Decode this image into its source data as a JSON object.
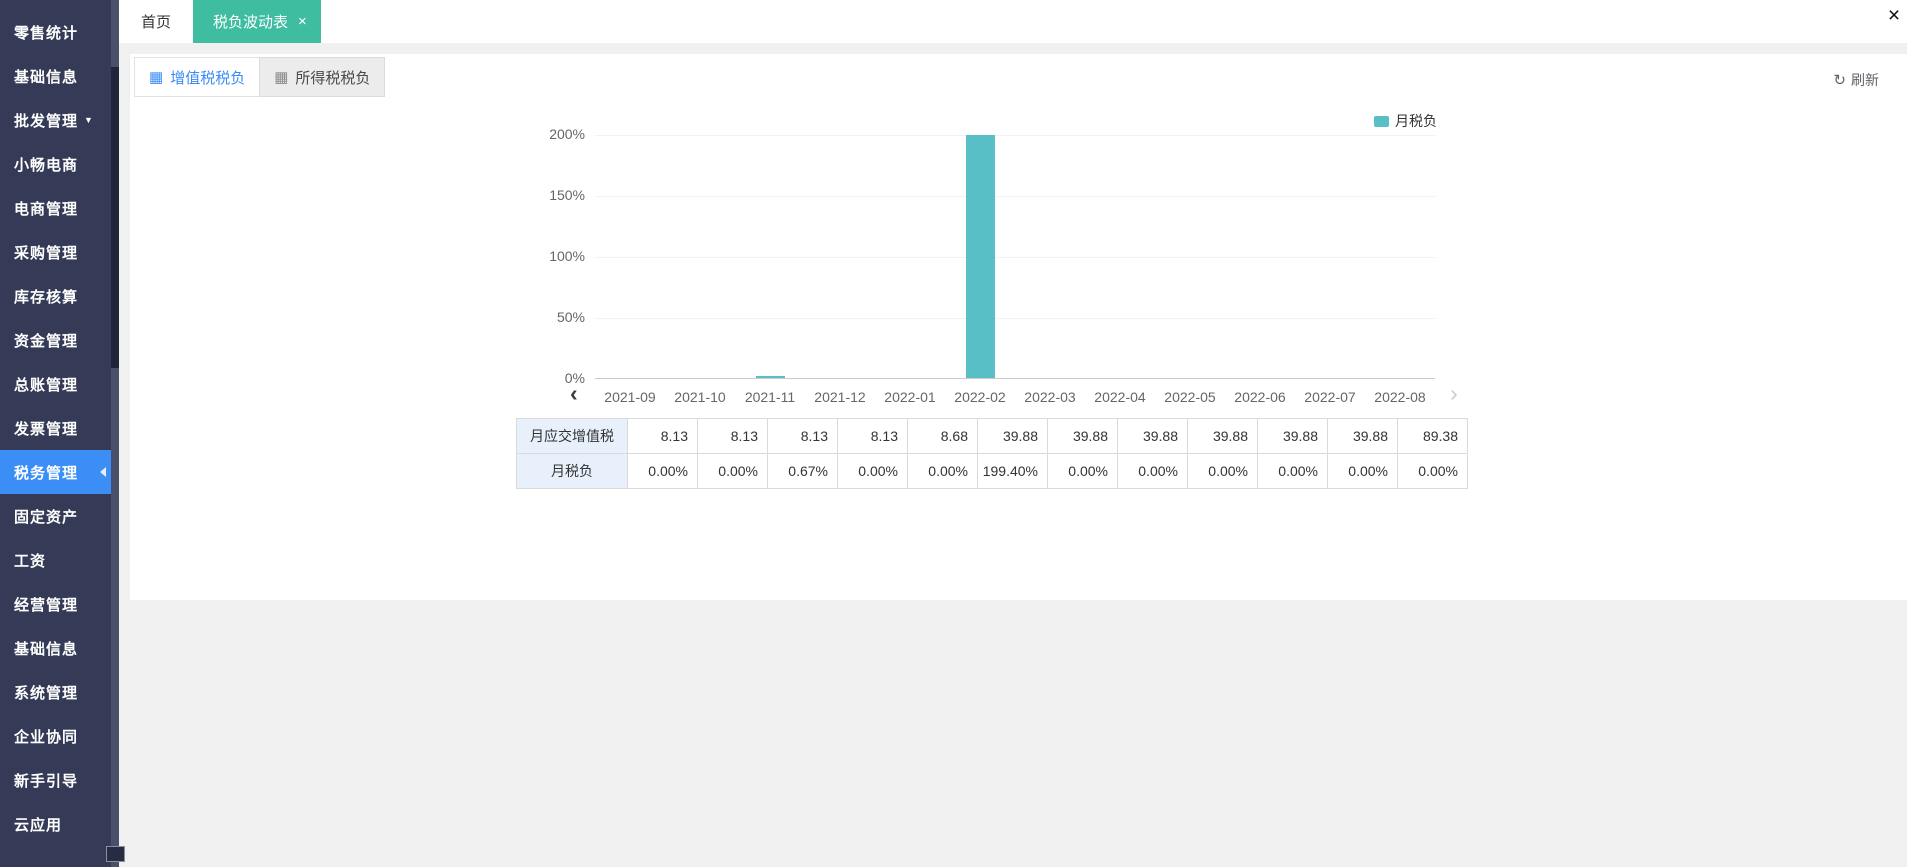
{
  "window": {
    "close_label": "×"
  },
  "icons": {
    "grid": "▦",
    "refresh": "↻",
    "caret_down": "▼",
    "prev": "‹",
    "next": "›"
  },
  "sidebar": {
    "items": [
      {
        "label": "零售统计"
      },
      {
        "label": "基础信息"
      },
      {
        "label": "批发管理",
        "caret": true
      },
      {
        "label": "小畅电商"
      },
      {
        "label": "电商管理"
      },
      {
        "label": "采购管理"
      },
      {
        "label": "库存核算"
      },
      {
        "label": "资金管理"
      },
      {
        "label": "总账管理"
      },
      {
        "label": "发票管理"
      },
      {
        "label": "税务管理",
        "active": true
      },
      {
        "label": "固定资产"
      },
      {
        "label": "工资"
      },
      {
        "label": "经营管理"
      },
      {
        "label": "基础信息"
      },
      {
        "label": "系统管理"
      },
      {
        "label": "企业协同"
      },
      {
        "label": "新手引导"
      },
      {
        "label": "云应用"
      }
    ]
  },
  "tabs": {
    "home": "首页",
    "active": "税负波动表",
    "close": "×"
  },
  "panel": {
    "subtab_vat": "增值税税负",
    "subtab_income": "所得税税负",
    "refresh": "刷新"
  },
  "chart_data": {
    "type": "bar",
    "title": "",
    "categories": [
      "2021-09",
      "2021-10",
      "2021-11",
      "2021-12",
      "2022-01",
      "2022-02",
      "2022-03",
      "2022-04",
      "2022-05",
      "2022-06",
      "2022-07",
      "2022-08"
    ],
    "series": [
      {
        "name": "月税负",
        "values": [
          0,
          0,
          0.67,
          0,
          0,
          199.4,
          0,
          0,
          0,
          0,
          0,
          0
        ]
      }
    ],
    "yticks": [
      {
        "value": 0,
        "label": "0%"
      },
      {
        "value": 50,
        "label": "50%"
      },
      {
        "value": 100,
        "label": "100%"
      },
      {
        "value": 150,
        "label": "150%"
      },
      {
        "value": 200,
        "label": "200%"
      }
    ],
    "ylim": [
      0,
      200
    ],
    "bar_color": "#57bfc5",
    "legend_position": "top-right",
    "grid": true
  },
  "table": {
    "rows": [
      {
        "label": "月应交增值税",
        "values": [
          "8.13",
          "8.13",
          "8.13",
          "8.13",
          "8.68",
          "39.88",
          "39.88",
          "39.88",
          "39.88",
          "39.88",
          "39.88",
          "89.38"
        ]
      },
      {
        "label": "月税负",
        "values": [
          "0.00%",
          "0.00%",
          "0.67%",
          "0.00%",
          "0.00%",
          "199.40%",
          "0.00%",
          "0.00%",
          "0.00%",
          "0.00%",
          "0.00%",
          "0.00%"
        ]
      }
    ]
  },
  "colors": {
    "sidebar_bg": "#353b57",
    "sidebar_active": "#3a8ef6",
    "tab_active_bg": "#3fbda0",
    "bar": "#57bfc5",
    "accent_blue": "#3a8bf7",
    "table_label_bg": "#e7f0fb"
  }
}
